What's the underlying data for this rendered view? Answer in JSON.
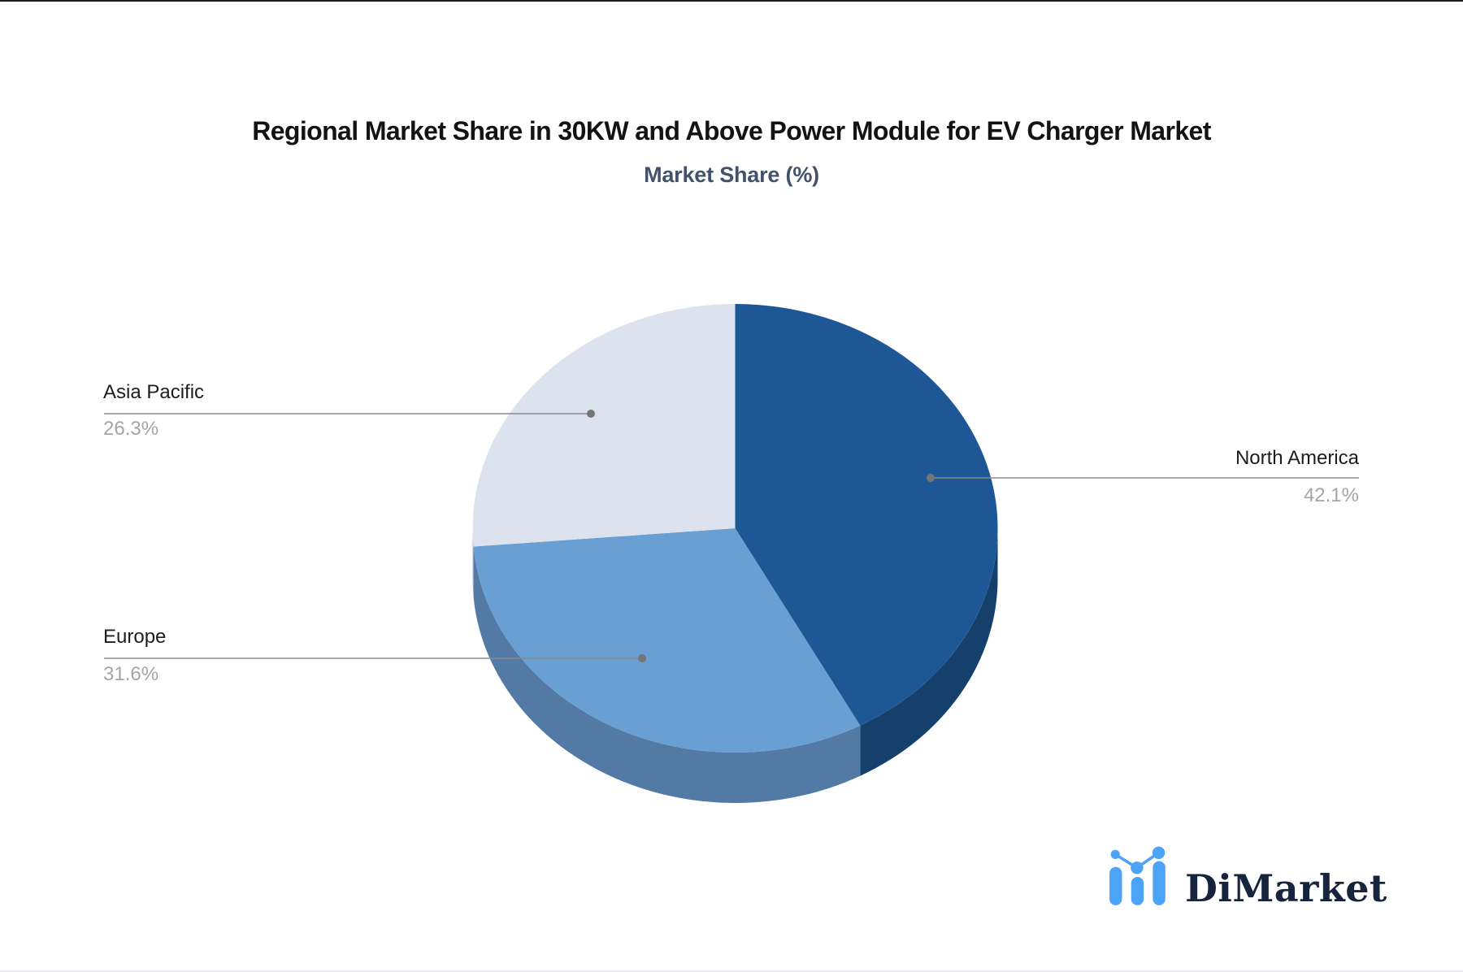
{
  "page": {
    "title": "Regional Market Share in 30KW and Above Power Module for EV Charger Market",
    "subtitle": "Market Share (%)"
  },
  "chart_data": {
    "type": "pie",
    "style": "3d",
    "title": "Regional Market Share in 30KW and Above Power Module for EV Charger Market",
    "subtitle": "Market Share (%)",
    "unit": "%",
    "direction": "clockwise",
    "start_angle_deg": 0,
    "legend_position": "callout-labels",
    "slices": [
      {
        "label": "North America",
        "value": 42.1,
        "display": "42.1%",
        "color": "#1d5795",
        "side_color": "#15406b"
      },
      {
        "label": "Europe",
        "value": 31.6,
        "display": "31.6%",
        "color": "#699fd2",
        "side_color": "#527aa5"
      },
      {
        "label": "Asia Pacific",
        "value": 26.3,
        "display": "26.3%",
        "color": "#dce3ee",
        "side_color": "#aab7c9"
      }
    ]
  },
  "branding": {
    "logo_text": "DiMarket",
    "logo_icon": "bar-chart-trend-icon",
    "logo_icon_color": "#4da3f5",
    "logo_text_color": "#17243d"
  },
  "colors": {
    "background": "#ffffff",
    "title": "#131313",
    "subtitle": "#42526b",
    "callout_label": "#1d1d1f",
    "callout_value": "#a5a5a5",
    "leader_line": "#8a8a8a",
    "leader_dot": "#757575"
  }
}
